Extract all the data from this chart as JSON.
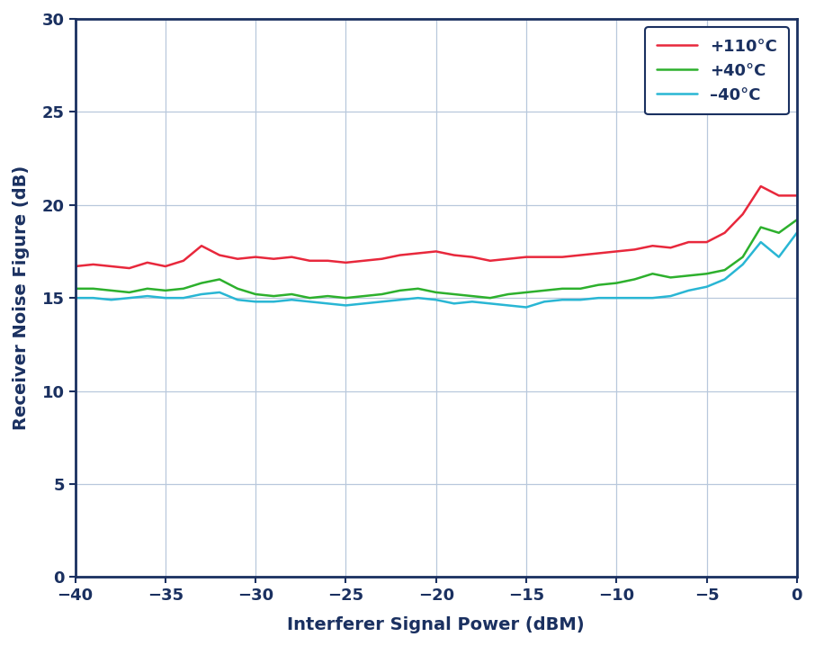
{
  "title": "",
  "xlabel": "Interferer Signal Power (dBM)",
  "ylabel": "Receiver Noise Figure (dB)",
  "xlim": [
    -40,
    0
  ],
  "ylim": [
    0,
    30
  ],
  "xticks": [
    -40,
    -35,
    -30,
    -25,
    -20,
    -15,
    -10,
    -5,
    0
  ],
  "yticks": [
    0,
    5,
    10,
    15,
    20,
    25,
    30
  ],
  "background_color": "#ffffff",
  "plot_bg_color": "#ffffff",
  "grid_color": "#b8c8dc",
  "spine_color": "#1a3060",
  "tick_color": "#1a3060",
  "label_color": "#1a3060",
  "legend_text_color": "#1a3060",
  "legend_edge_color": "#1a3060",
  "figsize": [
    9.06,
    7.18
  ],
  "dpi": 100,
  "series": [
    {
      "label": "+110°C",
      "color": "#e8283c",
      "linewidth": 1.8,
      "x": [
        -40,
        -39,
        -38,
        -37,
        -36,
        -35,
        -34,
        -33,
        -32,
        -31,
        -30,
        -29,
        -28,
        -27,
        -26,
        -25,
        -24,
        -23,
        -22,
        -21,
        -20,
        -19,
        -18,
        -17,
        -16,
        -15,
        -14,
        -13,
        -12,
        -11,
        -10,
        -9,
        -8,
        -7,
        -6,
        -5,
        -4,
        -3,
        -2,
        -1,
        0
      ],
      "y": [
        16.7,
        16.8,
        16.7,
        16.6,
        16.9,
        16.7,
        17.0,
        17.8,
        17.3,
        17.1,
        17.2,
        17.1,
        17.2,
        17.0,
        17.0,
        16.9,
        17.0,
        17.1,
        17.3,
        17.4,
        17.5,
        17.3,
        17.2,
        17.0,
        17.1,
        17.2,
        17.2,
        17.2,
        17.3,
        17.4,
        17.5,
        17.6,
        17.8,
        17.7,
        18.0,
        18.0,
        18.5,
        19.5,
        21.0,
        20.5,
        20.5
      ]
    },
    {
      "label": "+40°C",
      "color": "#2db02d",
      "linewidth": 1.8,
      "x": [
        -40,
        -39,
        -38,
        -37,
        -36,
        -35,
        -34,
        -33,
        -32,
        -31,
        -30,
        -29,
        -28,
        -27,
        -26,
        -25,
        -24,
        -23,
        -22,
        -21,
        -20,
        -19,
        -18,
        -17,
        -16,
        -15,
        -14,
        -13,
        -12,
        -11,
        -10,
        -9,
        -8,
        -7,
        -6,
        -5,
        -4,
        -3,
        -2,
        -1,
        0
      ],
      "y": [
        15.5,
        15.5,
        15.4,
        15.3,
        15.5,
        15.4,
        15.5,
        15.8,
        16.0,
        15.5,
        15.2,
        15.1,
        15.2,
        15.0,
        15.1,
        15.0,
        15.1,
        15.2,
        15.4,
        15.5,
        15.3,
        15.2,
        15.1,
        15.0,
        15.2,
        15.3,
        15.4,
        15.5,
        15.5,
        15.7,
        15.8,
        16.0,
        16.3,
        16.1,
        16.2,
        16.3,
        16.5,
        17.2,
        18.8,
        18.5,
        19.2
      ]
    },
    {
      "label": "–40°C",
      "color": "#29b6d4",
      "linewidth": 1.8,
      "x": [
        -40,
        -39,
        -38,
        -37,
        -36,
        -35,
        -34,
        -33,
        -32,
        -31,
        -30,
        -29,
        -28,
        -27,
        -26,
        -25,
        -24,
        -23,
        -22,
        -21,
        -20,
        -19,
        -18,
        -17,
        -16,
        -15,
        -14,
        -13,
        -12,
        -11,
        -10,
        -9,
        -8,
        -7,
        -6,
        -5,
        -4,
        -3,
        -2,
        -1,
        0
      ],
      "y": [
        15.0,
        15.0,
        14.9,
        15.0,
        15.1,
        15.0,
        15.0,
        15.2,
        15.3,
        14.9,
        14.8,
        14.8,
        14.9,
        14.8,
        14.7,
        14.6,
        14.7,
        14.8,
        14.9,
        15.0,
        14.9,
        14.7,
        14.8,
        14.7,
        14.6,
        14.5,
        14.8,
        14.9,
        14.9,
        15.0,
        15.0,
        15.0,
        15.0,
        15.1,
        15.4,
        15.6,
        16.0,
        16.8,
        18.0,
        17.2,
        18.5
      ]
    }
  ]
}
